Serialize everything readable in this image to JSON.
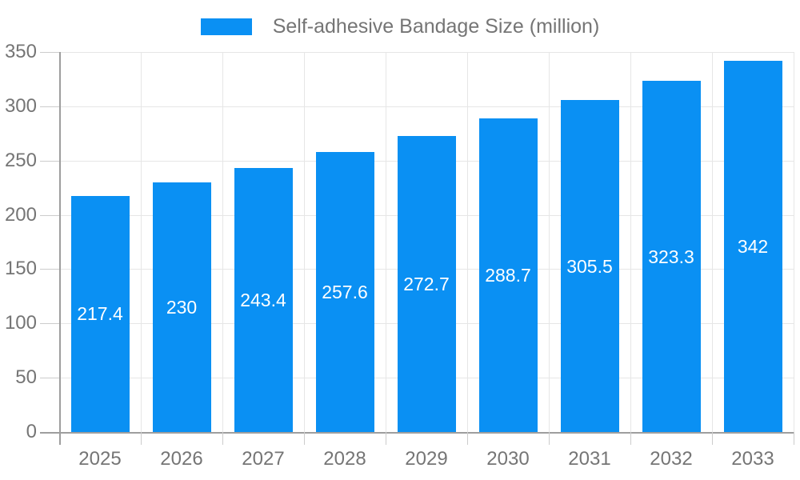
{
  "chart_data": {
    "type": "bar",
    "title": "Self-adhesive Bandage Size (million)",
    "categories": [
      "2025",
      "2026",
      "2027",
      "2028",
      "2029",
      "2030",
      "2031",
      "2032",
      "2033"
    ],
    "values": [
      217.4,
      230,
      243.4,
      257.6,
      272.7,
      288.7,
      305.5,
      323.3,
      342
    ],
    "value_labels": [
      "217.4",
      "230",
      "243.4",
      "257.6",
      "272.7",
      "288.7",
      "305.5",
      "323.3",
      "342"
    ],
    "xlabel": "",
    "ylabel": "",
    "ylim": [
      0,
      350
    ],
    "yticks": [
      0,
      50,
      100,
      150,
      200,
      250,
      300,
      350
    ],
    "grid": true,
    "legend_position": "top"
  },
  "colors": {
    "bar": "#0a90f3",
    "axis_line": "#9e9e9e",
    "gridline": "#e6e6e6",
    "tick": "#cccccc",
    "axis_text": "#757575",
    "bar_label_text": "#ffffff",
    "background": "#ffffff"
  }
}
